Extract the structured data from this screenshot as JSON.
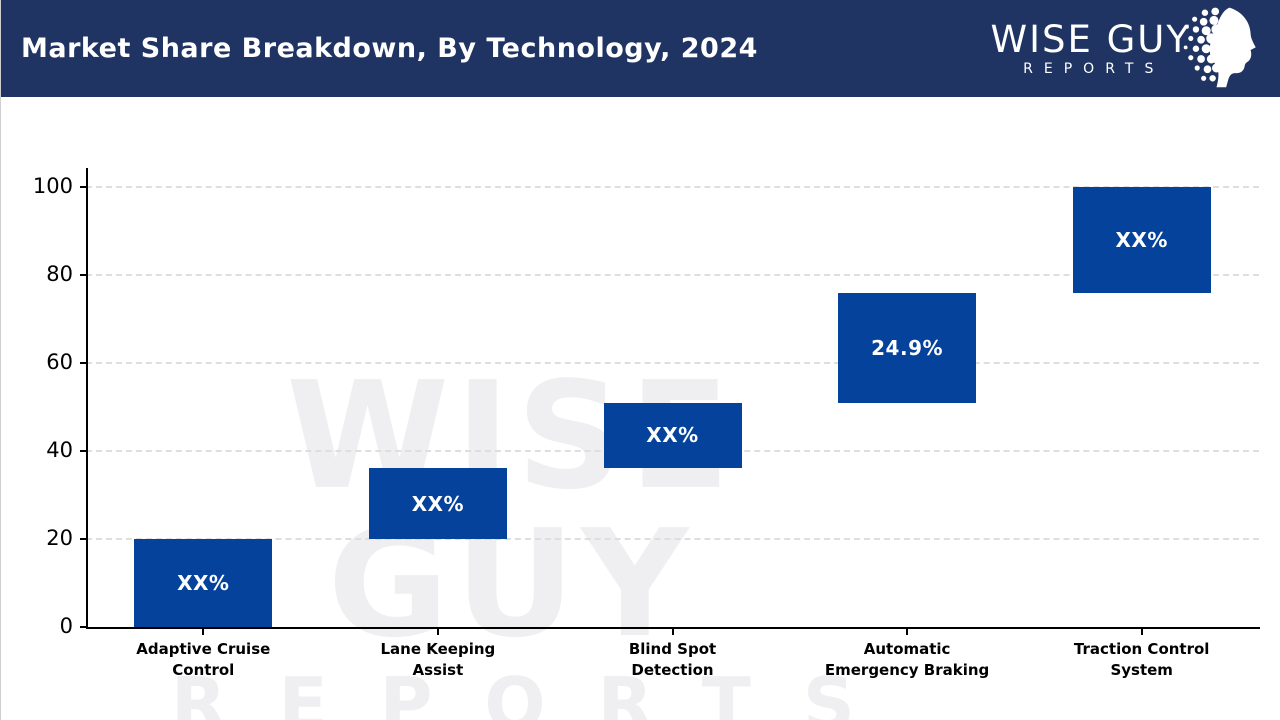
{
  "header": {
    "title": "Market Share Breakdown, By Technology, 2024",
    "logo": {
      "primary": "WISE GUY",
      "secondary": "REPORTS"
    }
  },
  "watermark": {
    "primary": "WISE GUY",
    "secondary": "REPORTS"
  },
  "colors": {
    "header_bg": "#1f3463",
    "bar": "#04429b",
    "grid": "#dedede",
    "watermark": "#efeff1",
    "axis": "#000000",
    "title_text": "#ffffff",
    "page_border": "#cfcfcf"
  },
  "chart_data": {
    "type": "bar",
    "subtype": "waterfall",
    "title": "Market Share Breakdown, By Technology, 2024",
    "xlabel": "",
    "ylabel": "",
    "ylim": [
      0,
      100
    ],
    "yticks": [
      0,
      20,
      40,
      60,
      80,
      100
    ],
    "grid": "horizontal-dashed",
    "legend": "none",
    "categories": [
      [
        "Adaptive Cruise",
        "Control"
      ],
      [
        "Lane Keeping",
        "Assist"
      ],
      [
        "Blind Spot",
        "Detection"
      ],
      [
        "Automatic",
        "Emergency Braking"
      ],
      [
        "Traction Control",
        "System"
      ]
    ],
    "segments": [
      {
        "start": 0,
        "end": 20.0,
        "value": 20.0,
        "label": "XX%"
      },
      {
        "start": 20.0,
        "end": 36.1,
        "value": 16.1,
        "label": "XX%"
      },
      {
        "start": 36.1,
        "end": 51.0,
        "value": 14.9,
        "label": "XX%"
      },
      {
        "start": 51.0,
        "end": 75.9,
        "value": 24.9,
        "label": "24.9%"
      },
      {
        "start": 75.9,
        "end": 100.0,
        "value": 24.1,
        "label": "XX%"
      }
    ]
  }
}
